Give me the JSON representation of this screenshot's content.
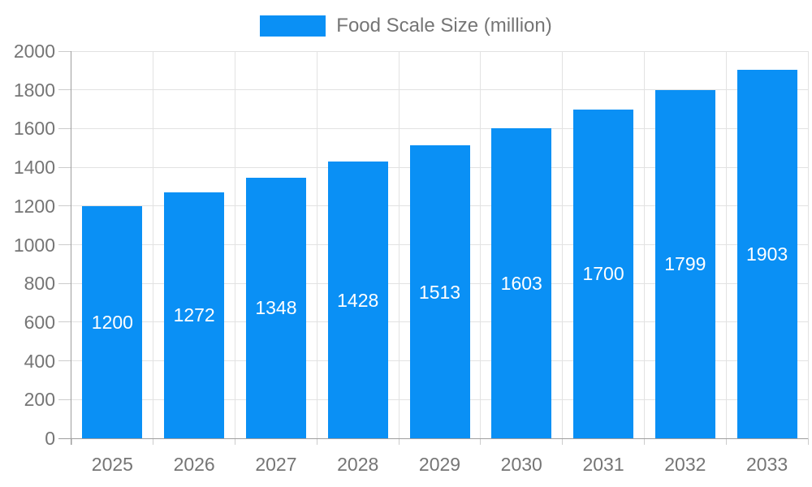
{
  "legend": {
    "label": "Food Scale Size (million)"
  },
  "chart_data": {
    "type": "bar",
    "title": "",
    "xlabel": "",
    "ylabel": "",
    "series_name": "Food Scale Size (million)",
    "categories": [
      "2025",
      "2026",
      "2027",
      "2028",
      "2029",
      "2030",
      "2031",
      "2032",
      "2033"
    ],
    "values": [
      1200,
      1272,
      1348,
      1428,
      1513,
      1603,
      1700,
      1799,
      1903
    ],
    "value_labels_shown": true,
    "ylim": [
      0,
      2000
    ],
    "ytick_step": 200,
    "ytick_labels": [
      "0",
      "200",
      "400",
      "600",
      "800",
      "1000",
      "1200",
      "1400",
      "1600",
      "1800",
      "2000"
    ],
    "grid": true,
    "legend_position": "top-center",
    "bar_color": "#0a90f5",
    "value_label_color": "#ffffff",
    "axis_text_color": "#757575",
    "grid_color": "#e2e2e2",
    "tick_color": "#cccccc",
    "axis_line_color": "#9e9e9e"
  }
}
